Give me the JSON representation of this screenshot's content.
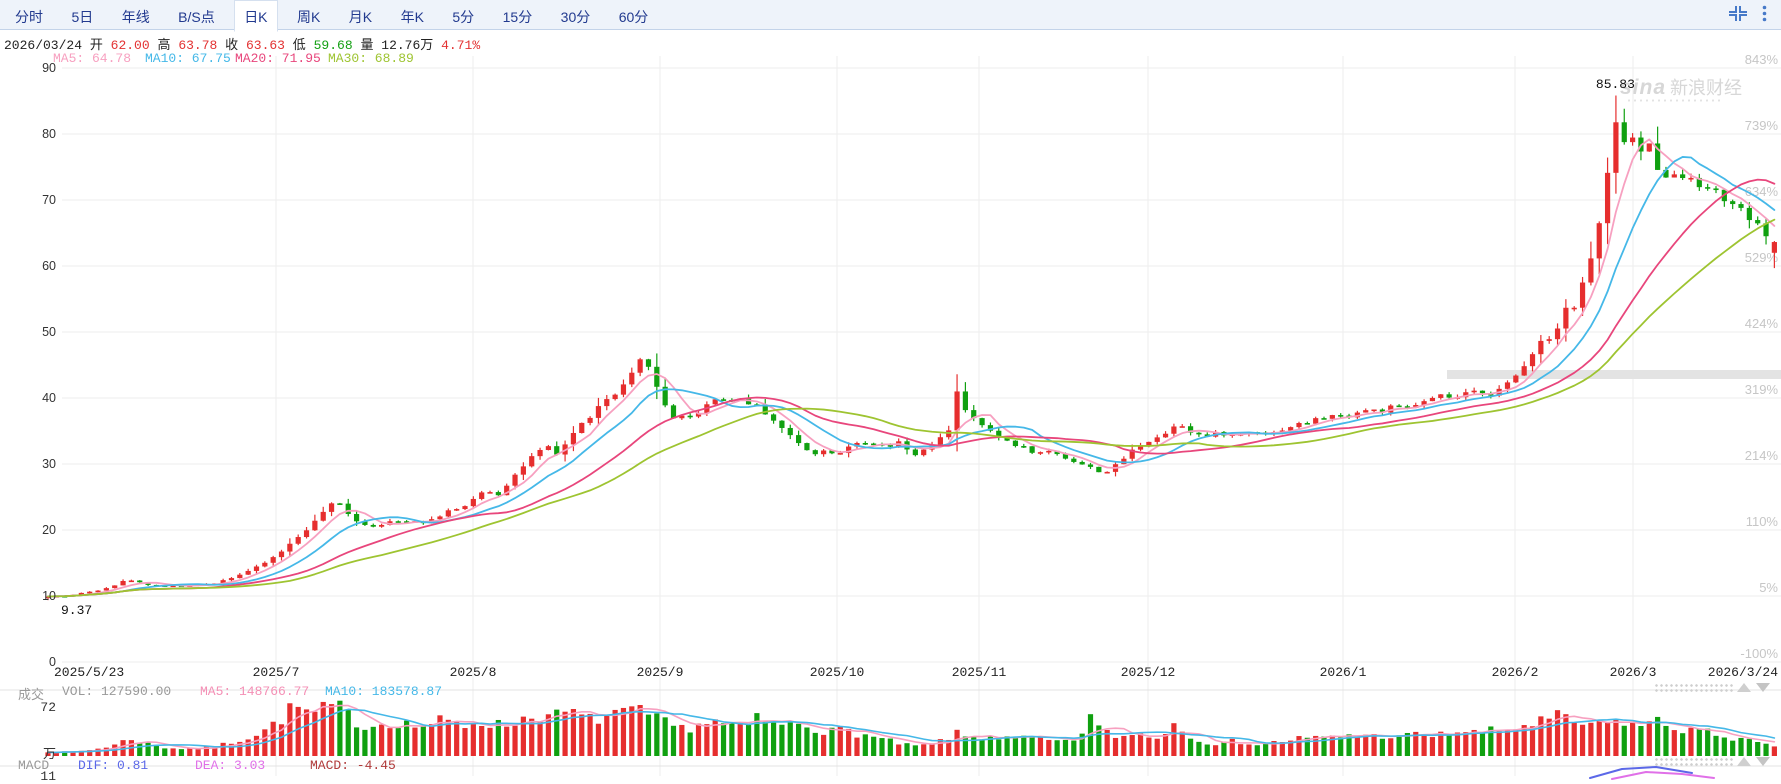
{
  "toolbar": {
    "tabs": [
      {
        "label": "分时"
      },
      {
        "label": "5日"
      },
      {
        "label": "年线"
      },
      {
        "label": "B/S点"
      },
      {
        "label": "日K",
        "active": true
      },
      {
        "label": "周K"
      },
      {
        "label": "月K"
      },
      {
        "label": "年K"
      },
      {
        "label": "5分"
      },
      {
        "label": "15分"
      },
      {
        "label": "30分"
      },
      {
        "label": "60分"
      }
    ],
    "icons": [
      "collapse-icon",
      "more-icon"
    ]
  },
  "info_bar": {
    "date": "2026/03/24",
    "open_label": "开",
    "open": "62.00",
    "high_label": "高",
    "high": "63.78",
    "close_label": "收",
    "close": "63.63",
    "low_label": "低",
    "low": "59.68",
    "volume_label": "量",
    "volume": "12.76万",
    "change_pct": "4.71%"
  },
  "ma_bar": {
    "ma5": "MA5: 64.78",
    "ma10": "MA10: 67.75",
    "ma20": "MA20: 71.95",
    "ma30": "MA30: 68.89"
  },
  "volume_header": {
    "title": "成交",
    "vol": "VOL: 127590.00",
    "ma5": "MA5: 148766.77",
    "ma10": "MA10: 183578.87"
  },
  "macd_header": {
    "title": "MACD",
    "dif": "DIF: 0.81",
    "dea": "DEA: 3.03",
    "macd": "MACD: -4.45"
  },
  "watermark": {
    "brand": "sina",
    "name": "新浪财经"
  },
  "chart_data": {
    "type": "candlestick",
    "timeframe": "日K",
    "annotations": {
      "high": "85.83",
      "low": "9.37"
    },
    "high_value": 85.83,
    "low_value": 9.37,
    "last_candle": {
      "open": 62.0,
      "high": 63.78,
      "low": 59.68,
      "close": 63.63,
      "volume_wan": 12.76,
      "change_pct": "4.71%"
    },
    "price_axis": {
      "left_ticks": [
        90,
        80,
        70,
        60,
        50,
        40,
        30,
        20,
        10,
        0
      ],
      "right_ticks": [
        "843%",
        "739%",
        "634%",
        "529%",
        "424%",
        "319%",
        "214%",
        "110%",
        "5%",
        "-100%"
      ]
    },
    "x_ticks": [
      {
        "label": "2025/5/23",
        "x": 54,
        "anchor": "start"
      },
      {
        "label": "2025/7",
        "x": 276
      },
      {
        "label": "2025/8",
        "x": 473
      },
      {
        "label": "2025/9",
        "x": 660
      },
      {
        "label": "2025/10",
        "x": 837
      },
      {
        "label": "2025/11",
        "x": 979
      },
      {
        "label": "2025/12",
        "x": 1148
      },
      {
        "label": "2026/1",
        "x": 1343
      },
      {
        "label": "2026/2",
        "x": 1515
      },
      {
        "label": "2026/3",
        "x": 1633
      },
      {
        "label": "2026/3/24",
        "x": 1778,
        "anchor": "end"
      }
    ],
    "month_grid_x": [
      276,
      473,
      660,
      837,
      979,
      1148,
      1343,
      1515,
      1633
    ],
    "volume_axis": {
      "top_label": "72",
      "unit_label": "万",
      "macd_top_label": "11"
    },
    "candle_count": 208,
    "price_anchors": [
      [
        48,
        9.9
      ],
      [
        70,
        10.1
      ],
      [
        95,
        10.8
      ],
      [
        118,
        11.8
      ],
      [
        128,
        12.6
      ],
      [
        140,
        12.0
      ],
      [
        155,
        11.6
      ],
      [
        175,
        11.5
      ],
      [
        195,
        11.6
      ],
      [
        215,
        12.0
      ],
      [
        235,
        13.0
      ],
      [
        255,
        14.2
      ],
      [
        270,
        15.5
      ],
      [
        285,
        17.2
      ],
      [
        300,
        19.2
      ],
      [
        315,
        21.3
      ],
      [
        328,
        23.6
      ],
      [
        338,
        24.2
      ],
      [
        350,
        22.3
      ],
      [
        360,
        21.0
      ],
      [
        372,
        20.6
      ],
      [
        385,
        21.1
      ],
      [
        400,
        21.3
      ],
      [
        412,
        21.5
      ],
      [
        425,
        21.2
      ],
      [
        438,
        22.0
      ],
      [
        450,
        23.2
      ],
      [
        462,
        23.0
      ],
      [
        473,
        24.6
      ],
      [
        485,
        26.3
      ],
      [
        497,
        25.2
      ],
      [
        510,
        27.5
      ],
      [
        522,
        29.5
      ],
      [
        535,
        31.5
      ],
      [
        548,
        32.5
      ],
      [
        558,
        31.2
      ],
      [
        568,
        33.8
      ],
      [
        580,
        35.8
      ],
      [
        592,
        37.5
      ],
      [
        604,
        39.5
      ],
      [
        616,
        40.5
      ],
      [
        628,
        42.5
      ],
      [
        638,
        45.0
      ],
      [
        645,
        46.8
      ],
      [
        652,
        43.5
      ],
      [
        660,
        40.2
      ],
      [
        668,
        38.2
      ],
      [
        676,
        36.6
      ],
      [
        684,
        37.8
      ],
      [
        692,
        36.8
      ],
      [
        700,
        38.2
      ],
      [
        710,
        39.5
      ],
      [
        720,
        40.2
      ],
      [
        730,
        39.6
      ],
      [
        740,
        40.0
      ],
      [
        750,
        39.2
      ],
      [
        760,
        38.5
      ],
      [
        770,
        37.2
      ],
      [
        778,
        36.0
      ],
      [
        788,
        34.5
      ],
      [
        798,
        33.2
      ],
      [
        808,
        32.2
      ],
      [
        818,
        31.6
      ],
      [
        828,
        32.2
      ],
      [
        838,
        31.5
      ],
      [
        848,
        32.8
      ],
      [
        858,
        33.4
      ],
      [
        868,
        32.6
      ],
      [
        878,
        33.0
      ],
      [
        888,
        32.4
      ],
      [
        898,
        33.2
      ],
      [
        908,
        32.0
      ],
      [
        918,
        31.2
      ],
      [
        928,
        32.5
      ],
      [
        938,
        33.5
      ],
      [
        948,
        34.8
      ],
      [
        954,
        38.5
      ],
      [
        958,
        42.0
      ],
      [
        963,
        38.5
      ],
      [
        970,
        37.0
      ],
      [
        980,
        36.2
      ],
      [
        990,
        34.8
      ],
      [
        1000,
        34.0
      ],
      [
        1012,
        33.2
      ],
      [
        1025,
        32.4
      ],
      [
        1038,
        31.6
      ],
      [
        1052,
        32.0
      ],
      [
        1065,
        31.0
      ],
      [
        1078,
        30.2
      ],
      [
        1092,
        29.3
      ],
      [
        1105,
        28.7
      ],
      [
        1115,
        29.6
      ],
      [
        1128,
        31.5
      ],
      [
        1140,
        33.0
      ],
      [
        1152,
        33.8
      ],
      [
        1165,
        34.5
      ],
      [
        1178,
        36.6
      ],
      [
        1185,
        35.5
      ],
      [
        1195,
        34.6
      ],
      [
        1208,
        34.1
      ],
      [
        1220,
        34.8
      ],
      [
        1232,
        34.3
      ],
      [
        1245,
        34.7
      ],
      [
        1258,
        35.1
      ],
      [
        1270,
        34.5
      ],
      [
        1282,
        35.3
      ],
      [
        1295,
        35.9
      ],
      [
        1308,
        36.3
      ],
      [
        1320,
        36.9
      ],
      [
        1332,
        37.3
      ],
      [
        1343,
        37.1
      ],
      [
        1355,
        37.7
      ],
      [
        1368,
        38.3
      ],
      [
        1380,
        37.9
      ],
      [
        1392,
        38.6
      ],
      [
        1405,
        38.3
      ],
      [
        1418,
        39.1
      ],
      [
        1430,
        39.6
      ],
      [
        1442,
        40.3
      ],
      [
        1455,
        39.9
      ],
      [
        1468,
        40.6
      ],
      [
        1480,
        41.1
      ],
      [
        1492,
        40.7
      ],
      [
        1504,
        41.6
      ],
      [
        1515,
        43.1
      ],
      [
        1525,
        45.1
      ],
      [
        1535,
        47.6
      ],
      [
        1545,
        49.6
      ],
      [
        1552,
        48.6
      ],
      [
        1560,
        52.1
      ],
      [
        1568,
        54.6
      ],
      [
        1575,
        53.6
      ],
      [
        1582,
        57.1
      ],
      [
        1590,
        60.6
      ],
      [
        1597,
        64.6
      ],
      [
        1604,
        70.1
      ],
      [
        1610,
        76.1
      ],
      [
        1616,
        81.3
      ],
      [
        1621,
        78.1
      ],
      [
        1627,
        80.3
      ],
      [
        1633,
        79.1
      ],
      [
        1640,
        77.1
      ],
      [
        1648,
        78.6
      ],
      [
        1655,
        76.1
      ],
      [
        1662,
        73.6
      ],
      [
        1670,
        74.6
      ],
      [
        1678,
        72.6
      ],
      [
        1686,
        74.1
      ],
      [
        1694,
        73.6
      ],
      [
        1702,
        72.1
      ],
      [
        1710,
        70.9
      ],
      [
        1718,
        71.6
      ],
      [
        1726,
        69.9
      ],
      [
        1734,
        68.9
      ],
      [
        1742,
        68.1
      ],
      [
        1750,
        67.1
      ],
      [
        1758,
        65.9
      ],
      [
        1764,
        64.6
      ],
      [
        1771,
        62.5
      ],
      [
        1778,
        63.6
      ]
    ],
    "volume_anchors": [
      [
        48,
        6
      ],
      [
        70,
        5
      ],
      [
        95,
        9
      ],
      [
        118,
        16
      ],
      [
        130,
        24
      ],
      [
        145,
        18
      ],
      [
        160,
        12
      ],
      [
        180,
        10
      ],
      [
        200,
        10
      ],
      [
        220,
        14
      ],
      [
        240,
        22
      ],
      [
        258,
        30
      ],
      [
        272,
        40
      ],
      [
        285,
        55
      ],
      [
        295,
        66
      ],
      [
        305,
        60
      ],
      [
        315,
        55
      ],
      [
        325,
        62
      ],
      [
        335,
        68
      ],
      [
        345,
        58
      ],
      [
        355,
        48
      ],
      [
        365,
        40
      ],
      [
        378,
        42
      ],
      [
        390,
        46
      ],
      [
        402,
        44
      ],
      [
        415,
        40
      ],
      [
        428,
        42
      ],
      [
        440,
        46
      ],
      [
        452,
        44
      ],
      [
        465,
        40
      ],
      [
        478,
        48
      ],
      [
        490,
        44
      ],
      [
        502,
        40
      ],
      [
        515,
        46
      ],
      [
        528,
        52
      ],
      [
        540,
        56
      ],
      [
        552,
        50
      ],
      [
        565,
        58
      ],
      [
        578,
        54
      ],
      [
        590,
        48
      ],
      [
        602,
        52
      ],
      [
        615,
        58
      ],
      [
        628,
        54
      ],
      [
        640,
        60
      ],
      [
        650,
        52
      ],
      [
        660,
        46
      ],
      [
        672,
        40
      ],
      [
        684,
        36
      ],
      [
        696,
        42
      ],
      [
        708,
        46
      ],
      [
        720,
        44
      ],
      [
        732,
        40
      ],
      [
        745,
        36
      ],
      [
        758,
        52
      ],
      [
        770,
        44
      ],
      [
        782,
        38
      ],
      [
        795,
        48
      ],
      [
        808,
        42
      ],
      [
        820,
        36
      ],
      [
        832,
        32
      ],
      [
        845,
        36
      ],
      [
        858,
        30
      ],
      [
        870,
        26
      ],
      [
        882,
        22
      ],
      [
        895,
        18
      ],
      [
        908,
        14
      ],
      [
        920,
        13
      ],
      [
        932,
        16
      ],
      [
        945,
        22
      ],
      [
        955,
        30
      ],
      [
        965,
        26
      ],
      [
        978,
        24
      ],
      [
        990,
        28
      ],
      [
        1002,
        24
      ],
      [
        1015,
        22
      ],
      [
        1028,
        26
      ],
      [
        1040,
        22
      ],
      [
        1052,
        20
      ],
      [
        1065,
        18
      ],
      [
        1078,
        22
      ],
      [
        1090,
        55
      ],
      [
        1100,
        34
      ],
      [
        1112,
        28
      ],
      [
        1125,
        26
      ],
      [
        1138,
        30
      ],
      [
        1150,
        28
      ],
      [
        1162,
        24
      ],
      [
        1175,
        46
      ],
      [
        1185,
        34
      ],
      [
        1198,
        22
      ],
      [
        1210,
        18
      ],
      [
        1222,
        16
      ],
      [
        1235,
        20
      ],
      [
        1248,
        18
      ],
      [
        1260,
        14
      ],
      [
        1272,
        18
      ],
      [
        1285,
        20
      ],
      [
        1298,
        24
      ],
      [
        1310,
        22
      ],
      [
        1322,
        26
      ],
      [
        1335,
        24
      ],
      [
        1348,
        28
      ],
      [
        1360,
        30
      ],
      [
        1372,
        26
      ],
      [
        1385,
        28
      ],
      [
        1398,
        24
      ],
      [
        1410,
        28
      ],
      [
        1422,
        30
      ],
      [
        1435,
        26
      ],
      [
        1448,
        30
      ],
      [
        1460,
        34
      ],
      [
        1472,
        30
      ],
      [
        1485,
        34
      ],
      [
        1498,
        32
      ],
      [
        1510,
        36
      ],
      [
        1522,
        40
      ],
      [
        1535,
        44
      ],
      [
        1548,
        48
      ],
      [
        1560,
        52
      ],
      [
        1572,
        46
      ],
      [
        1585,
        42
      ],
      [
        1598,
        40
      ],
      [
        1610,
        44
      ],
      [
        1622,
        48
      ],
      [
        1635,
        40
      ],
      [
        1648,
        44
      ],
      [
        1660,
        46
      ],
      [
        1672,
        38
      ],
      [
        1685,
        36
      ],
      [
        1698,
        34
      ],
      [
        1710,
        30
      ],
      [
        1722,
        28
      ],
      [
        1735,
        24
      ],
      [
        1748,
        20
      ],
      [
        1760,
        16
      ],
      [
        1772,
        13
      ]
    ],
    "macd_preview": {
      "dif": [
        [
          1590,
          778
        ],
        [
          1622,
          769
        ],
        [
          1656,
          767
        ],
        [
          1692,
          773
        ]
      ],
      "dea": [
        [
          1612,
          779
        ],
        [
          1646,
          772
        ],
        [
          1682,
          774
        ],
        [
          1714,
          778
        ]
      ]
    }
  },
  "colors": {
    "up": "#e62e2e",
    "down": "#10a010",
    "ma5": "#f7a0c0",
    "ma10": "#45b8e8",
    "ma20": "#e8467c",
    "ma30": "#9ec431",
    "grid": "#ededed",
    "pane_border": "#e3e3e3",
    "band": "#e3e3e3",
    "right_axis_text": "#c6c6c6",
    "axis_text": "#333333",
    "dif": "#5b68e8",
    "dea": "#e070e8",
    "macd_value": "#b03a3a",
    "icon_blue": "#4679c8",
    "watermark": "#d7d7d7"
  }
}
